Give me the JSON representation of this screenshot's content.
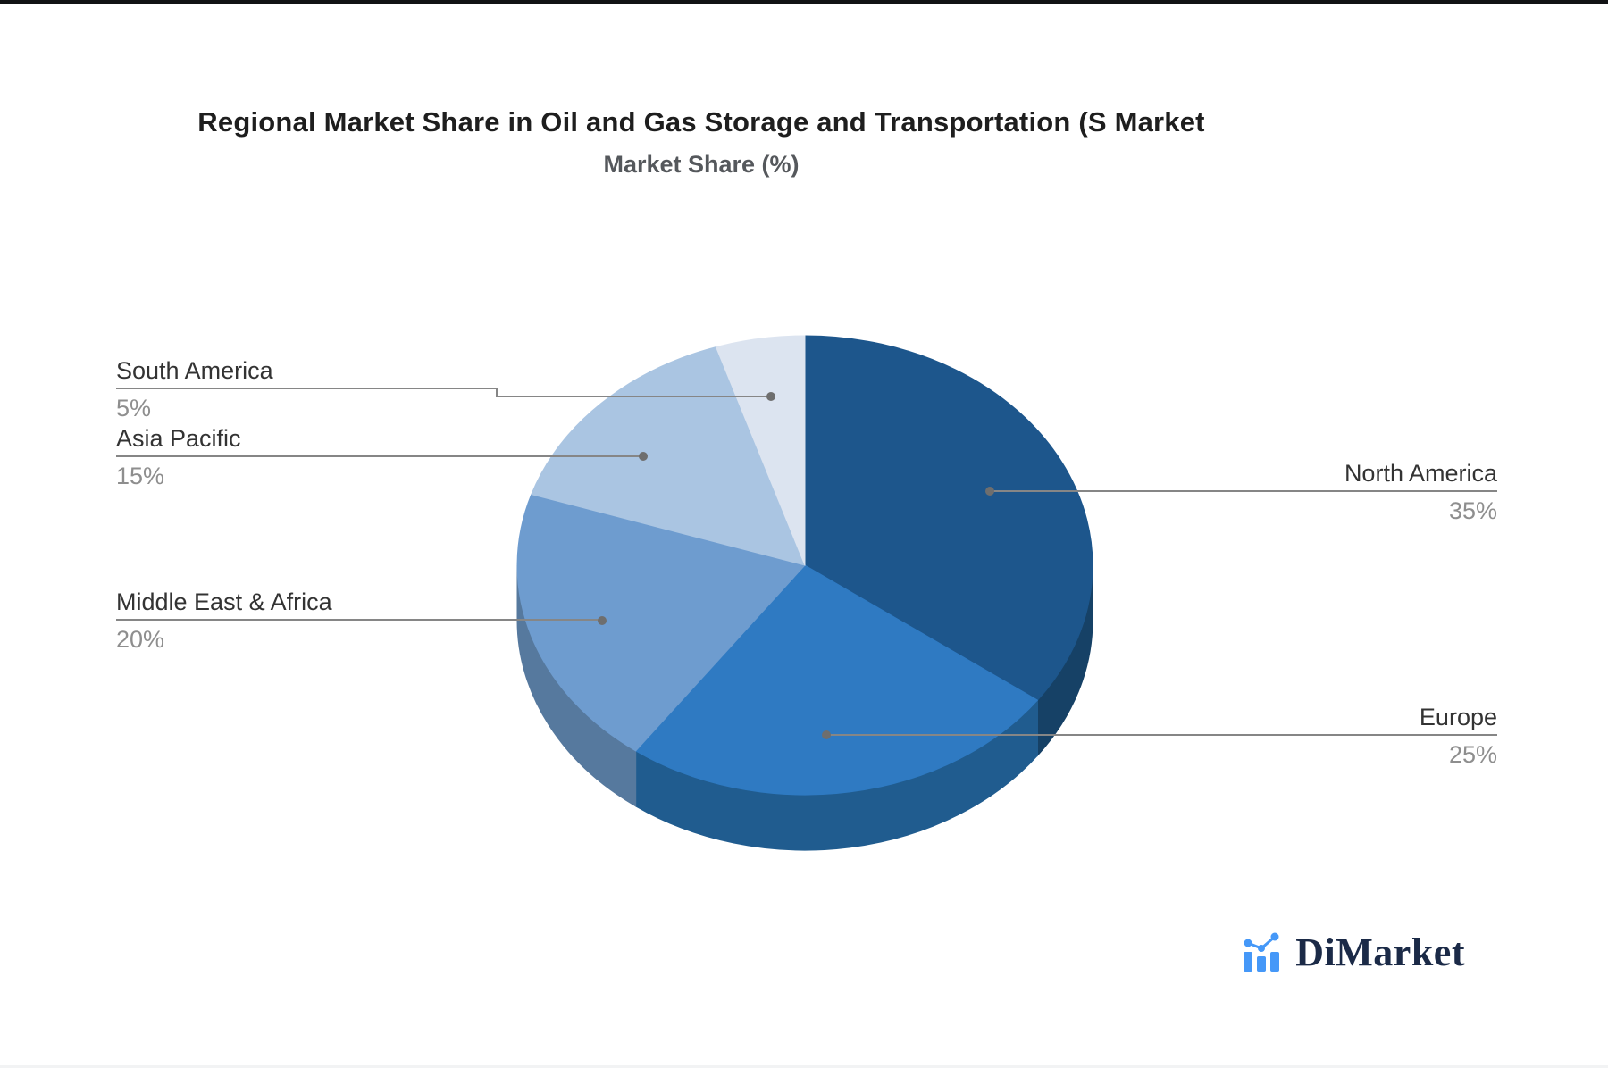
{
  "page": {
    "background_color": "#ffffff",
    "top_bar_color": "#111214"
  },
  "chart_data": {
    "type": "pie",
    "style": "3d",
    "title": "Regional Market Share in Oil and Gas Storage and Transportation (S Market",
    "subtitle": "Market Share (%)",
    "unit": "%",
    "categories": [
      "North America",
      "Europe",
      "Middle East & Africa",
      "Asia Pacific",
      "South America"
    ],
    "values": [
      35,
      25,
      20,
      15,
      5
    ],
    "pct_labels": [
      "35%",
      "25%",
      "20%",
      "15%",
      "5%"
    ],
    "colors": [
      "#1d568c",
      "#2f7ac2",
      "#6e9ccf",
      "#aac5e2",
      "#dce4f0"
    ],
    "side_colors": [
      "#164166",
      "#205c8f",
      "#56799e",
      "#7e9ab8",
      "#b0bccf"
    ],
    "start_angle_deg": 0,
    "direction": "clockwise",
    "legend_position": "none",
    "grid": false,
    "leader_line_color": "#868686",
    "leader_dot_color": "#6e6e6e",
    "title_color": "#1e1e1e",
    "subtitle_color": "#55585c",
    "label_color": "#333333",
    "pct_color": "#8e8e8e"
  },
  "branding": {
    "logo_text": "DiMarket",
    "logo_text_color": "#1b2a47",
    "logo_icon": "bar-line-chart-icon",
    "logo_icon_color": "#4598f8"
  }
}
